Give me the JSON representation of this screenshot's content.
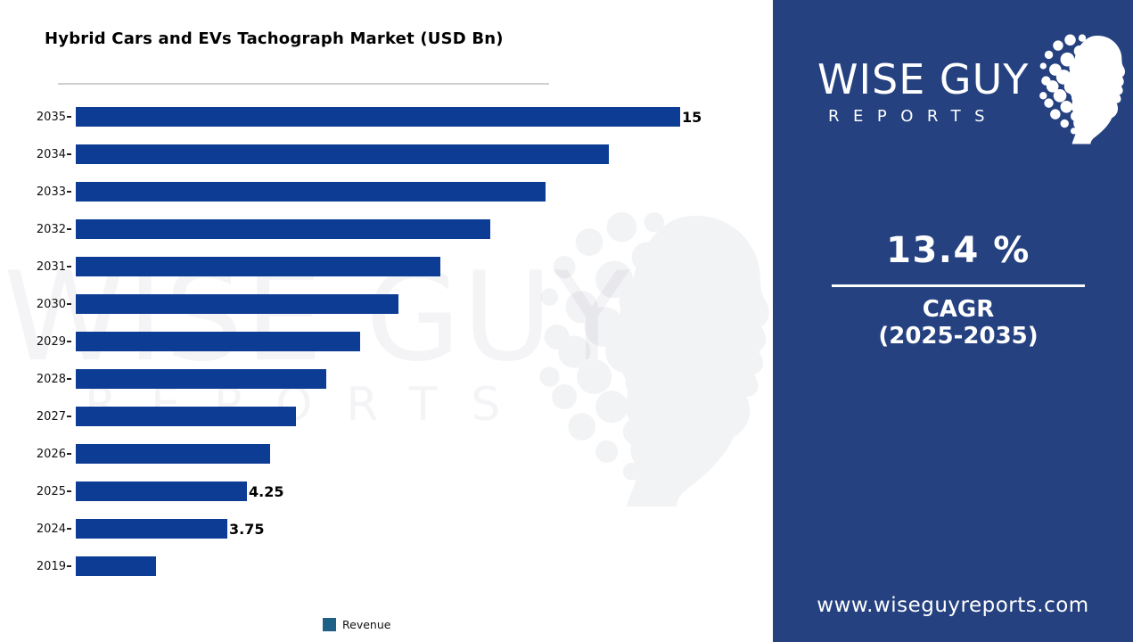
{
  "chart_data": {
    "type": "bar",
    "orientation": "horizontal",
    "title": "Hybrid Cars and EVs Tachograph Market (USD Bn)",
    "xlabel": "",
    "ylabel": "",
    "categories": [
      "2035",
      "2034",
      "2033",
      "2032",
      "2031",
      "2030",
      "2029",
      "2028",
      "2027",
      "2026",
      "2025",
      "2024",
      "2019"
    ],
    "values": [
      15,
      13.23,
      11.66,
      10.29,
      9.05,
      8.0,
      7.05,
      6.22,
      5.47,
      4.83,
      4.25,
      3.75,
      2.0
    ],
    "value_labels": {
      "2035": "15",
      "2025": "4.25",
      "2024": "3.75"
    },
    "xlim": [
      0,
      15.8
    ],
    "grid": false,
    "bar_color": "#0c3c94",
    "legend": {
      "label": "Revenue",
      "color": "#1f6087",
      "position": "bottom-center"
    }
  },
  "watermark": {
    "line1": "WISE GUY",
    "line2": "REPORTS"
  },
  "sidebar": {
    "bg_color": "#254180",
    "logo_line1": "WISE GUY",
    "logo_line2": "REPORTS",
    "cagr_value": "13.4 %",
    "cagr_label": "CAGR",
    "cagr_range": "(2025-2035)",
    "website": "www.wiseguyreports.com"
  }
}
